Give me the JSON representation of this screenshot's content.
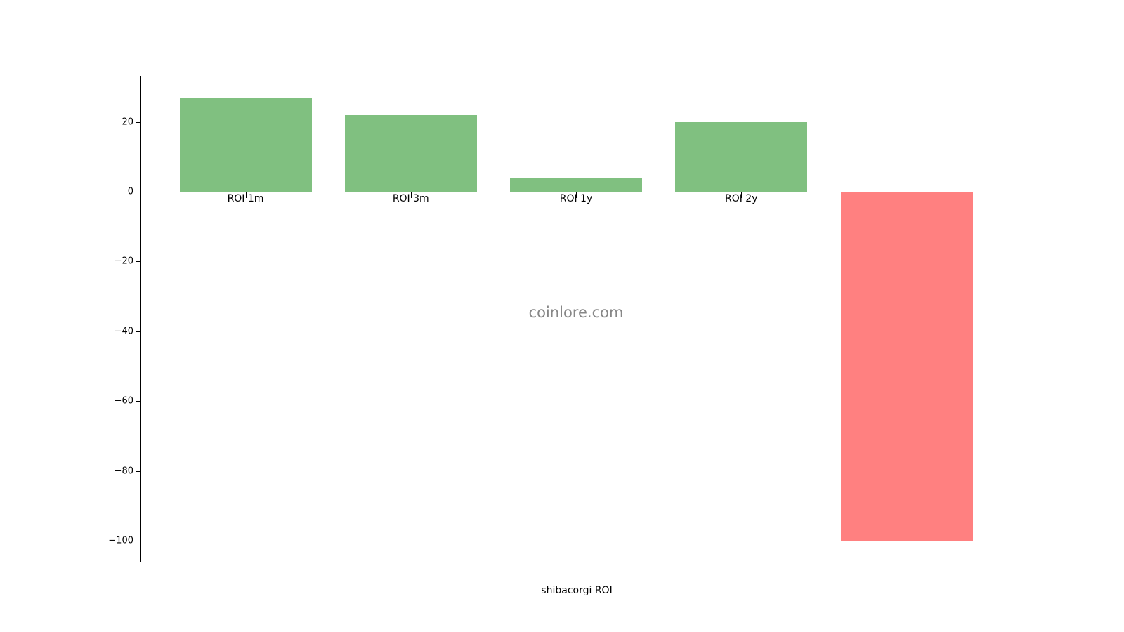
{
  "watermark": {
    "text": "coinlore.com",
    "color": "#878787"
  },
  "chart_data": {
    "type": "bar",
    "title": "shibacorgi ROI",
    "categories": [
      "ROI 1m",
      "ROI 3m",
      "ROI 1y",
      "ROI 2y",
      ""
    ],
    "values": [
      27,
      22,
      4,
      20,
      -100
    ],
    "series": [
      {
        "name": "shibacorgi ROI",
        "values": [
          27,
          22,
          4,
          20,
          -100
        ]
      }
    ],
    "positive_color": "#80c080",
    "negative_color": "#ff8080",
    "axis_color": "#000000",
    "yticks": [
      20,
      0,
      -20,
      -40,
      -60,
      -80,
      -100
    ],
    "ytick_labels": [
      "20",
      "0",
      "−20",
      "−40",
      "−60",
      "−80",
      "−100"
    ],
    "ylim": [
      -106,
      33
    ],
    "xlabel": "",
    "ylabel": "",
    "grid": false,
    "legend": null,
    "annotations": [
      "coinlore.com"
    ]
  }
}
